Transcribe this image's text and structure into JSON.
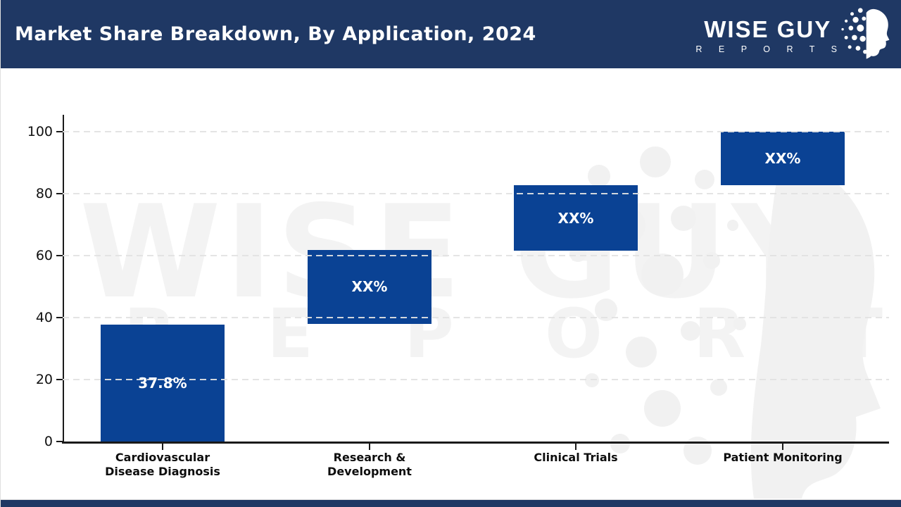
{
  "header": {
    "title": "Market Share Breakdown, By Application, 2024",
    "logo": {
      "line1": "WISE GUY",
      "line2": "R E P O R T S"
    }
  },
  "watermark": {
    "line1": "WISE GUY",
    "line2": "R E P O R T S"
  },
  "colors": {
    "header_navy": "#1F3864",
    "bar_blue": "#0A4294",
    "gridline": "#E6E6E6",
    "axis": "#1A1A1A",
    "watermark_gray": "#F3F3F3"
  },
  "chart_data": {
    "type": "bar",
    "subtype": "floating-segment-breakdown",
    "title": "Market Share Breakdown, By Application, 2024",
    "categories": [
      "Cardiovascular Disease Diagnosis",
      "Research & Development",
      "Clinical Trials",
      "Patient Monitoring"
    ],
    "category_label_lines": [
      "Cardiovascular\nDisease Diagnosis",
      "Research &\nDevelopment",
      "Clinical Trials",
      "Patient Monitoring"
    ],
    "segments": [
      {
        "category": "Cardiovascular Disease Diagnosis",
        "start": 0,
        "end": 37.8,
        "label": "37.8%"
      },
      {
        "category": "Research & Development",
        "start": 38.0,
        "end": 61.8,
        "label": "XX%"
      },
      {
        "category": "Clinical Trials",
        "start": 61.6,
        "end": 82.7,
        "label": "XX%"
      },
      {
        "category": "Patient Monitoring",
        "start": 82.7,
        "end": 100,
        "label": "XX%"
      }
    ],
    "yticks": [
      0,
      20,
      40,
      60,
      80,
      100
    ],
    "ylim": [
      0,
      105
    ],
    "xlabel": "",
    "ylabel": "",
    "grid": "dashed-horizontal",
    "legend": "none",
    "bar_color": "#0A4294"
  }
}
